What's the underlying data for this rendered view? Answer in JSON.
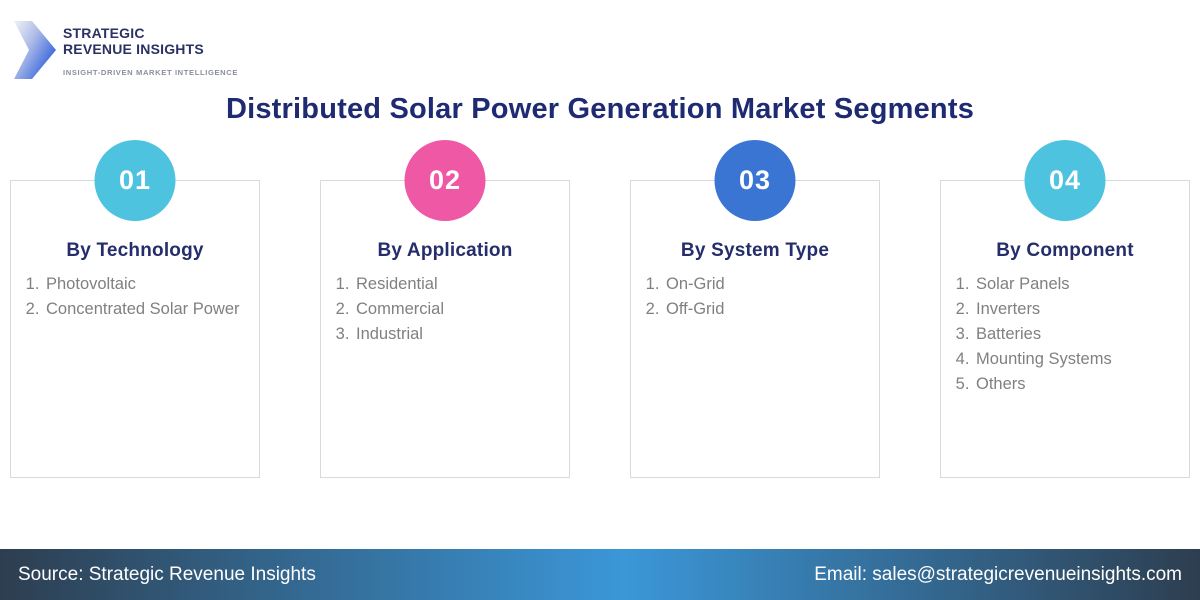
{
  "logo": {
    "line1": "STRATEGIC",
    "line2": "REVENUE INSIGHTS",
    "tagline": "INSIGHT-DRIVEN MARKET INTELLIGENCE"
  },
  "title": "Distributed Solar Power Generation Market Segments",
  "cards": [
    {
      "number": "01",
      "badge_color": "#4ec3e0",
      "heading": "By Technology",
      "items": [
        "Photovoltaic",
        "Concentrated Solar Power"
      ]
    },
    {
      "number": "02",
      "badge_color": "#ee58a4",
      "heading": "By Application",
      "items": [
        "Residential",
        "Commercial",
        "Industrial"
      ]
    },
    {
      "number": "03",
      "badge_color": "#3a75d3",
      "heading": "By System Type",
      "items": [
        "On-Grid",
        "Off-Grid"
      ]
    },
    {
      "number": "04",
      "badge_color": "#4ec3e0",
      "heading": "By Component",
      "items": [
        "Solar Panels",
        "Inverters",
        "Batteries",
        "Mounting Systems",
        "Others"
      ]
    }
  ],
  "footer": {
    "source": "Source: Strategic Revenue Insights",
    "email": "Email: sales@strategicrevenueinsights.com"
  },
  "colors": {
    "title_navy": "#1e2a72",
    "heading_navy": "#252d6b",
    "list_gray": "#808080",
    "badge_cyan": "#4ec3e0",
    "badge_pink": "#ee58a4",
    "badge_blue": "#3a75d3",
    "footer_dark": "#2d3e50",
    "footer_blue": "#3b97d8"
  }
}
